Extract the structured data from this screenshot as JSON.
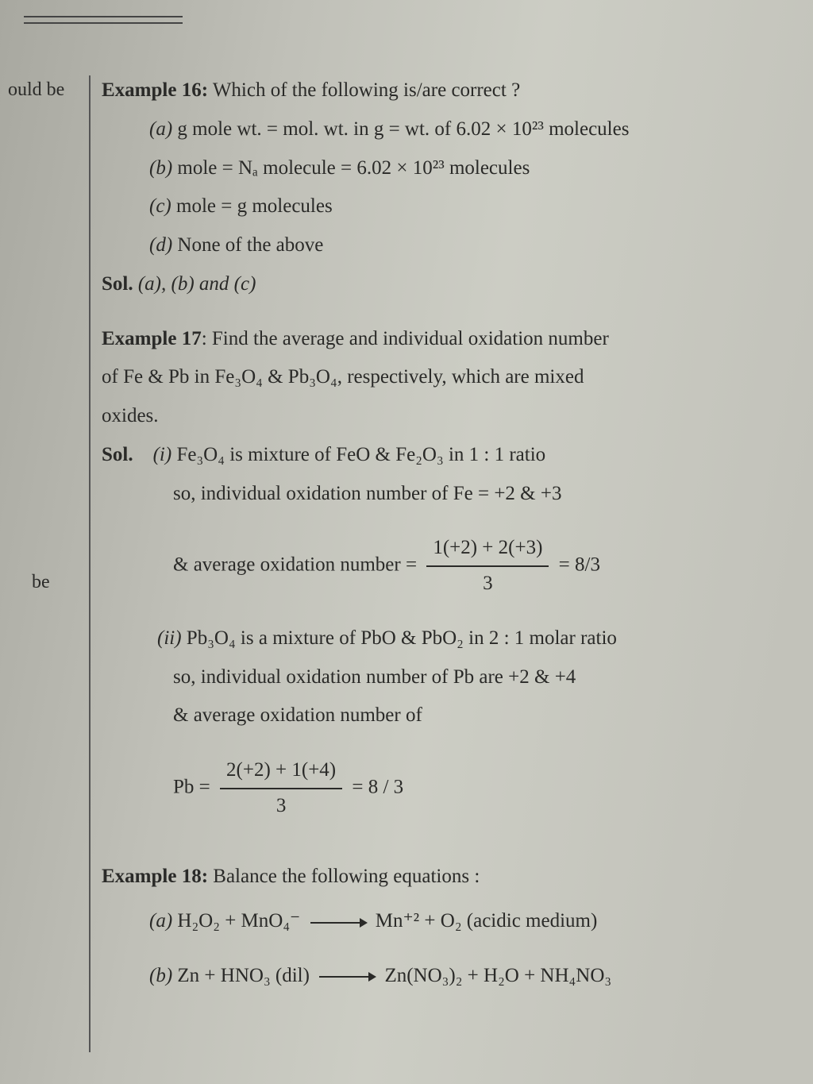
{
  "colors": {
    "background_gradient": [
      "#a8a8a0",
      "#c0c0b8",
      "#cccdc4",
      "#c2c2ba"
    ],
    "text": "#2a2a28",
    "rule": "#555555"
  },
  "typography": {
    "body_fontsize_pt": 19,
    "family": "serif"
  },
  "margin": {
    "label1": "ould be",
    "label2": "be"
  },
  "ex16": {
    "title_bold": "Example 16:",
    "title_rest": " Which of the following is/are correct ?",
    "a_label": "(a)",
    "a_text": " g mole wt. = mol. wt. in g = wt. of 6.02 × 10²³ molecules",
    "b_label": "(b)",
    "b_text": " mole = Nₐ molecule = 6.02 × 10²³ molecules",
    "c_label": "(c)",
    "c_text": " mole = g molecules",
    "d_label": "(d)",
    "d_text": " None of the above",
    "sol_bold": "Sol.",
    "sol_text": "   (a), (b) and (c)"
  },
  "ex17": {
    "title_bold": "Example 17",
    "title_rest": ": Find the average and individual oxidation number",
    "line2": "of Fe & Pb in Fe₃O₄ & Pb₃O₄,  respectively, which are mixed",
    "line3": "oxides.",
    "sol_bold": "Sol.",
    "i_label": "(i)",
    "i_text": " Fe₃O₄ is mixture of FeO & Fe₂O₃ in 1 : 1 ratio",
    "i_line2": "so, individual oxidation number of Fe = +2 & +3",
    "i_avg_prefix": "& average oxidation number = ",
    "i_frac_num": "1(+2) + 2(+3)",
    "i_frac_den": "3",
    "i_avg_suffix": " = 8/3",
    "ii_label": "(ii)",
    "ii_text": " Pb₃O₄ is a mixture of PbO & PbO₂ in 2 : 1 molar ratio",
    "ii_line2": "so, individual oxidation number of Pb are +2 & +4",
    "ii_line3": "& average oxidation number of",
    "ii_pb_prefix": "Pb = ",
    "ii_frac_num": "2(+2) + 1(+4)",
    "ii_frac_den": "3",
    "ii_pb_suffix": " = 8 / 3"
  },
  "ex18": {
    "title_bold": "Example 18:",
    "title_rest": " Balance the following equations :",
    "a_label": "(a)",
    "a_lhs": " H₂O₂ + MnO₄⁻ ",
    "a_rhs": " Mn⁺² + O₂ (acidic medium)",
    "b_label": "(b)",
    "b_lhs": " Zn + HNO₃ (dil) ",
    "b_rhs": " Zn(NO₃)₂ + H₂O + NH₄NO₃"
  }
}
